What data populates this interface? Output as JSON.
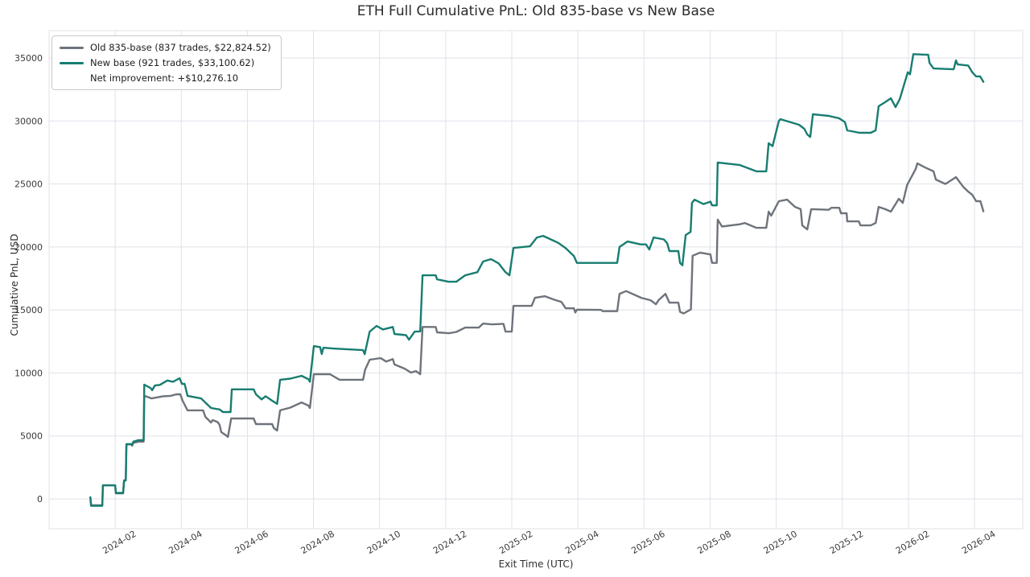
{
  "title": "ETH Full Cumulative PnL: Old 835-base vs New Base",
  "legend": {
    "old_label": "Old 835-base (837 trades, $22,824.52)",
    "new_label": "New base (921 trades, $33,100.62)",
    "note_label": "Net improvement: +$10,276.10"
  },
  "colors": {
    "old_series": "#6e737b",
    "new_series": "#177d70",
    "grid": "#e0e2e9",
    "tick_text": "#3a3a3a",
    "title_text": "#2b2b2b"
  },
  "chart_data": {
    "type": "line",
    "title": "ETH Full Cumulative PnL: Old 835-base vs New Base",
    "xlabel": "Exit Time (UTC)",
    "ylabel": "Cumulative PnL, USD",
    "grid": true,
    "legend_position": "upper-left",
    "x_unit": "months since 2024-01-01 (fractional)",
    "x_tick_positions": [
      1,
      3,
      5,
      7,
      9,
      11,
      13,
      15,
      17,
      19,
      21,
      23,
      25,
      27
    ],
    "x_tick_labels": [
      "2024-02",
      "2024-04",
      "2024-06",
      "2024-08",
      "2024-10",
      "2024-12",
      "2025-02",
      "2025-04",
      "2025-06",
      "2025-08",
      "2025-10",
      "2025-12",
      "2026-02",
      "2026-04"
    ],
    "y_ticks": [
      0,
      5000,
      10000,
      15000,
      20000,
      25000,
      30000,
      35000
    ],
    "xlim": [
      -1.0,
      28.46
    ],
    "ylim": [
      -2363,
      37171
    ],
    "series": [
      {
        "name": "Old 835-base (837 trades, $22,824.52)",
        "color": "#6e737b",
        "final_value": 22824.52,
        "trades": 837,
        "points": [
          [
            0.25,
            130
          ],
          [
            0.27,
            -500
          ],
          [
            0.61,
            -500
          ],
          [
            0.63,
            1080
          ],
          [
            1.0,
            1080
          ],
          [
            1.02,
            450
          ],
          [
            1.24,
            450
          ],
          [
            1.27,
            1470
          ],
          [
            1.32,
            1470
          ],
          [
            1.34,
            4340
          ],
          [
            1.49,
            4340
          ],
          [
            1.51,
            4230
          ],
          [
            1.55,
            4450
          ],
          [
            1.71,
            4550
          ],
          [
            1.86,
            4550
          ],
          [
            1.88,
            8180
          ],
          [
            2.0,
            8080
          ],
          [
            2.1,
            7980
          ],
          [
            2.45,
            8150
          ],
          [
            2.68,
            8180
          ],
          [
            2.85,
            8300
          ],
          [
            2.97,
            8300
          ],
          [
            3.04,
            7790
          ],
          [
            3.19,
            7030
          ],
          [
            3.66,
            7030
          ],
          [
            3.73,
            6510
          ],
          [
            3.9,
            6070
          ],
          [
            3.95,
            6260
          ],
          [
            4.1,
            6100
          ],
          [
            4.16,
            5880
          ],
          [
            4.21,
            5300
          ],
          [
            4.38,
            5000
          ],
          [
            4.41,
            4920
          ],
          [
            4.51,
            6390
          ],
          [
            5.19,
            6390
          ],
          [
            5.26,
            5940
          ],
          [
            5.75,
            5940
          ],
          [
            5.8,
            5620
          ],
          [
            5.9,
            5430
          ],
          [
            5.99,
            7030
          ],
          [
            6.3,
            7250
          ],
          [
            6.64,
            7660
          ],
          [
            6.85,
            7400
          ],
          [
            6.89,
            7220
          ],
          [
            7.01,
            9900
          ],
          [
            7.5,
            9900
          ],
          [
            7.79,
            9460
          ],
          [
            8.5,
            9460
          ],
          [
            8.56,
            10250
          ],
          [
            8.7,
            11050
          ],
          [
            9.03,
            11180
          ],
          [
            9.2,
            10900
          ],
          [
            9.4,
            11100
          ],
          [
            9.45,
            10670
          ],
          [
            9.76,
            10340
          ],
          [
            9.95,
            10030
          ],
          [
            10.1,
            10150
          ],
          [
            10.23,
            9900
          ],
          [
            10.3,
            13650
          ],
          [
            10.7,
            13650
          ],
          [
            10.74,
            13220
          ],
          [
            11.1,
            13150
          ],
          [
            11.32,
            13250
          ],
          [
            11.59,
            13600
          ],
          [
            12.0,
            13600
          ],
          [
            12.13,
            13920
          ],
          [
            12.4,
            13850
          ],
          [
            12.75,
            13900
          ],
          [
            12.81,
            13280
          ],
          [
            13.0,
            13280
          ],
          [
            13.05,
            15320
          ],
          [
            13.6,
            15320
          ],
          [
            13.7,
            15960
          ],
          [
            14.0,
            16090
          ],
          [
            14.3,
            15800
          ],
          [
            14.5,
            15640
          ],
          [
            14.63,
            15130
          ],
          [
            14.88,
            15130
          ],
          [
            14.92,
            14800
          ],
          [
            14.97,
            15020
          ],
          [
            15.7,
            15000
          ],
          [
            15.75,
            14900
          ],
          [
            16.19,
            14900
          ],
          [
            16.26,
            16280
          ],
          [
            16.46,
            16500
          ],
          [
            16.92,
            15960
          ],
          [
            17.2,
            15770
          ],
          [
            17.36,
            15450
          ],
          [
            17.45,
            15800
          ],
          [
            17.65,
            16280
          ],
          [
            17.77,
            15580
          ],
          [
            18.04,
            15580
          ],
          [
            18.09,
            14850
          ],
          [
            18.2,
            14720
          ],
          [
            18.42,
            15050
          ],
          [
            18.47,
            19300
          ],
          [
            18.7,
            19550
          ],
          [
            19.01,
            19400
          ],
          [
            19.06,
            18730
          ],
          [
            19.2,
            18730
          ],
          [
            19.23,
            22170
          ],
          [
            19.36,
            21620
          ],
          [
            19.9,
            21800
          ],
          [
            20.05,
            21900
          ],
          [
            20.4,
            21520
          ],
          [
            20.7,
            21520
          ],
          [
            20.77,
            22800
          ],
          [
            20.85,
            22480
          ],
          [
            21.08,
            23630
          ],
          [
            21.33,
            23750
          ],
          [
            21.57,
            23180
          ],
          [
            21.74,
            23000
          ],
          [
            21.79,
            21710
          ],
          [
            21.94,
            21390
          ],
          [
            22.06,
            23000
          ],
          [
            22.59,
            22950
          ],
          [
            22.67,
            23110
          ],
          [
            22.91,
            23110
          ],
          [
            22.96,
            22670
          ],
          [
            23.13,
            22670
          ],
          [
            23.15,
            22030
          ],
          [
            23.5,
            22030
          ],
          [
            23.55,
            21710
          ],
          [
            23.86,
            21710
          ],
          [
            24.01,
            21900
          ],
          [
            24.1,
            23180
          ],
          [
            24.3,
            23000
          ],
          [
            24.47,
            22800
          ],
          [
            24.71,
            23820
          ],
          [
            24.83,
            23500
          ],
          [
            24.96,
            24900
          ],
          [
            25.22,
            26180
          ],
          [
            25.27,
            26630
          ],
          [
            25.51,
            26300
          ],
          [
            25.76,
            26000
          ],
          [
            25.83,
            25350
          ],
          [
            26.12,
            25000
          ],
          [
            26.44,
            25540
          ],
          [
            26.66,
            24770
          ],
          [
            26.81,
            24390
          ],
          [
            26.93,
            24140
          ],
          [
            27.05,
            23630
          ],
          [
            27.18,
            23630
          ],
          [
            27.27,
            22824.52
          ]
        ]
      },
      {
        "name": "New base (921 trades, $33,100.62)",
        "color": "#177d70",
        "final_value": 33100.62,
        "trades": 921,
        "points": [
          [
            0.25,
            130
          ],
          [
            0.27,
            -550
          ],
          [
            0.61,
            -550
          ],
          [
            0.63,
            1080
          ],
          [
            1.0,
            1080
          ],
          [
            1.02,
            480
          ],
          [
            1.24,
            480
          ],
          [
            1.27,
            1470
          ],
          [
            1.32,
            1470
          ],
          [
            1.34,
            4340
          ],
          [
            1.49,
            4340
          ],
          [
            1.51,
            4280
          ],
          [
            1.55,
            4550
          ],
          [
            1.71,
            4670
          ],
          [
            1.86,
            4670
          ],
          [
            1.88,
            9070
          ],
          [
            2.07,
            8800
          ],
          [
            2.12,
            8630
          ],
          [
            2.2,
            9000
          ],
          [
            2.35,
            9050
          ],
          [
            2.58,
            9400
          ],
          [
            2.75,
            9300
          ],
          [
            2.95,
            9580
          ],
          [
            3.02,
            9130
          ],
          [
            3.1,
            9130
          ],
          [
            3.19,
            8180
          ],
          [
            3.6,
            7980
          ],
          [
            3.9,
            7220
          ],
          [
            4.16,
            7100
          ],
          [
            4.26,
            6900
          ],
          [
            4.49,
            6900
          ],
          [
            4.53,
            8700
          ],
          [
            5.19,
            8700
          ],
          [
            5.26,
            8300
          ],
          [
            5.43,
            7900
          ],
          [
            5.55,
            8150
          ],
          [
            5.78,
            7750
          ],
          [
            5.9,
            7540
          ],
          [
            5.99,
            9460
          ],
          [
            6.3,
            9550
          ],
          [
            6.64,
            9770
          ],
          [
            6.85,
            9500
          ],
          [
            6.89,
            9300
          ],
          [
            7.01,
            12130
          ],
          [
            7.2,
            12050
          ],
          [
            7.25,
            11500
          ],
          [
            7.3,
            12000
          ],
          [
            7.6,
            11940
          ],
          [
            8.5,
            11810
          ],
          [
            8.55,
            11490
          ],
          [
            8.7,
            13280
          ],
          [
            8.91,
            13730
          ],
          [
            9.1,
            13450
          ],
          [
            9.4,
            13650
          ],
          [
            9.45,
            13090
          ],
          [
            9.8,
            13000
          ],
          [
            9.89,
            12640
          ],
          [
            10.06,
            13280
          ],
          [
            10.23,
            13300
          ],
          [
            10.3,
            17750
          ],
          [
            10.7,
            17750
          ],
          [
            10.74,
            17430
          ],
          [
            11.08,
            17240
          ],
          [
            11.32,
            17240
          ],
          [
            11.59,
            17750
          ],
          [
            11.96,
            18000
          ],
          [
            12.13,
            18840
          ],
          [
            12.37,
            19030
          ],
          [
            12.6,
            18700
          ],
          [
            12.81,
            18000
          ],
          [
            12.93,
            17750
          ],
          [
            13.05,
            19920
          ],
          [
            13.55,
            20050
          ],
          [
            13.76,
            20750
          ],
          [
            13.95,
            20880
          ],
          [
            14.32,
            20430
          ],
          [
            14.42,
            20300
          ],
          [
            14.63,
            19900
          ],
          [
            14.88,
            19280
          ],
          [
            14.97,
            18730
          ],
          [
            16.19,
            18730
          ],
          [
            16.26,
            20000
          ],
          [
            16.5,
            20430
          ],
          [
            16.9,
            20200
          ],
          [
            17.06,
            20200
          ],
          [
            17.16,
            19800
          ],
          [
            17.29,
            20750
          ],
          [
            17.6,
            20600
          ],
          [
            17.7,
            20300
          ],
          [
            17.77,
            19670
          ],
          [
            18.04,
            19670
          ],
          [
            18.09,
            18730
          ],
          [
            18.16,
            18540
          ],
          [
            18.26,
            20940
          ],
          [
            18.41,
            21200
          ],
          [
            18.45,
            23500
          ],
          [
            18.53,
            23750
          ],
          [
            18.8,
            23400
          ],
          [
            19.01,
            23600
          ],
          [
            19.06,
            23300
          ],
          [
            19.2,
            23300
          ],
          [
            19.23,
            26700
          ],
          [
            19.9,
            26500
          ],
          [
            20.4,
            26000
          ],
          [
            20.7,
            26000
          ],
          [
            20.77,
            28230
          ],
          [
            20.89,
            28000
          ],
          [
            21.08,
            30000
          ],
          [
            21.13,
            30140
          ],
          [
            21.69,
            29700
          ],
          [
            21.85,
            29380
          ],
          [
            21.94,
            28930
          ],
          [
            22.03,
            28730
          ],
          [
            22.11,
            30530
          ],
          [
            22.59,
            30400
          ],
          [
            22.91,
            30200
          ],
          [
            23.08,
            29900
          ],
          [
            23.15,
            29250
          ],
          [
            23.52,
            29060
          ],
          [
            23.86,
            29060
          ],
          [
            24.01,
            29250
          ],
          [
            24.1,
            31170
          ],
          [
            24.3,
            31490
          ],
          [
            24.47,
            31800
          ],
          [
            24.61,
            31100
          ],
          [
            24.74,
            31740
          ],
          [
            24.98,
            33860
          ],
          [
            25.05,
            33700
          ],
          [
            25.15,
            35300
          ],
          [
            25.6,
            35250
          ],
          [
            25.64,
            34600
          ],
          [
            25.76,
            34160
          ],
          [
            26.37,
            34100
          ],
          [
            26.44,
            34800
          ],
          [
            26.49,
            34480
          ],
          [
            26.81,
            34400
          ],
          [
            26.93,
            33860
          ],
          [
            27.05,
            33540
          ],
          [
            27.17,
            33540
          ],
          [
            27.27,
            33100.62
          ]
        ]
      }
    ],
    "legend_note": "Net improvement: +$10,276.10"
  }
}
